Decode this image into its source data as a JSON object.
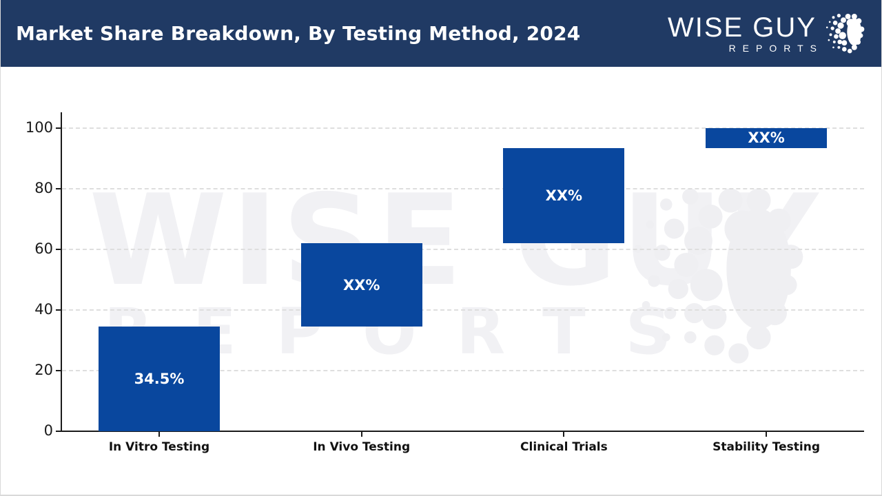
{
  "header": {
    "bg_color": "#203a64",
    "logo": {
      "line1": "WISE GUY",
      "line2": "REPORTS"
    }
  },
  "watermark": {
    "line1": "WISE GUY",
    "line2": "REPORTS"
  },
  "chart_data": {
    "type": "bar",
    "subtype": "waterfall",
    "title": "Market Share Breakdown, By Testing Method, 2024",
    "categories": [
      "In Vitro Testing",
      "In Vivo Testing",
      "Clinical Trials",
      "Stability Testing"
    ],
    "segments": [
      {
        "category": "In Vitro Testing",
        "start": 0,
        "end": 34.5,
        "label": "34.5%"
      },
      {
        "category": "In Vivo Testing",
        "start": 34.5,
        "end": 62,
        "label": "XX%"
      },
      {
        "category": "Clinical Trials",
        "start": 62,
        "end": 93.5,
        "label": "XX%"
      },
      {
        "category": "Stability Testing",
        "start": 93.5,
        "end": 100,
        "label": "XX%"
      }
    ],
    "bar_color": "#09479e",
    "label_color": "#ffffff",
    "ylim": [
      0,
      105
    ],
    "yticks": [
      0,
      20,
      40,
      60,
      80,
      100
    ],
    "xlabel": "",
    "ylabel": "",
    "grid": "horizontal-dashed",
    "legend": "none"
  }
}
